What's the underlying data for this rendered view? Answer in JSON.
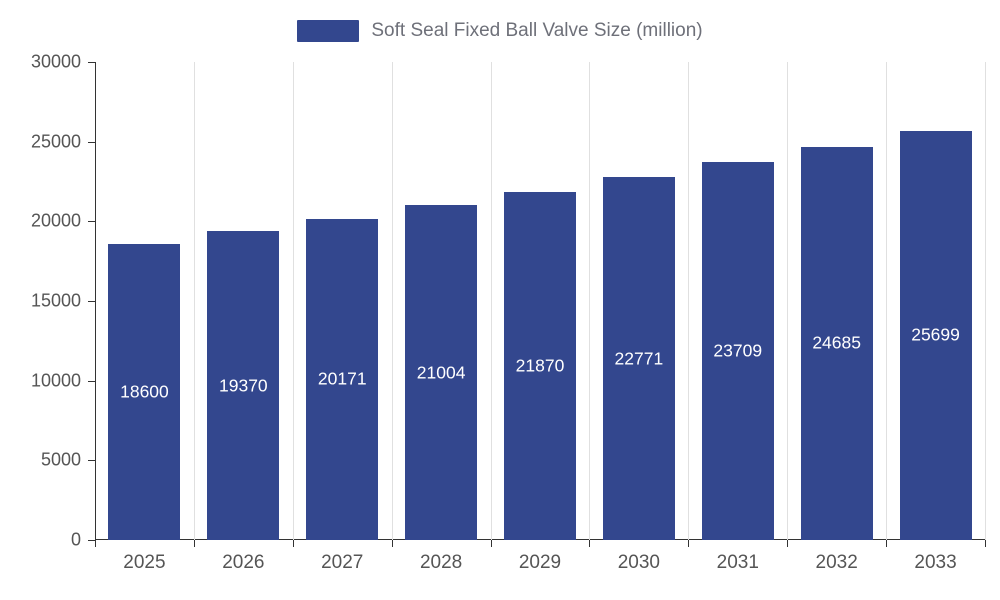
{
  "chart_data": {
    "type": "bar",
    "title": "Soft Seal Fixed Ball Valve Size (million)",
    "categories": [
      "2025",
      "2026",
      "2027",
      "2028",
      "2029",
      "2030",
      "2031",
      "2032",
      "2033"
    ],
    "values": [
      18600,
      19370,
      20171,
      21004,
      21870,
      22771,
      23709,
      24685,
      25699
    ],
    "value_labels": [
      "18600",
      "19370",
      "20171",
      "21004",
      "21870",
      "22771",
      "23709",
      "24685",
      "25699"
    ],
    "xlabel": "",
    "ylabel": "",
    "ylim": [
      0,
      30000
    ],
    "yticks": [
      0,
      5000,
      10000,
      15000,
      20000,
      25000,
      30000
    ],
    "ytick_labels": [
      "0",
      "5000",
      "10000",
      "15000",
      "20000",
      "25000",
      "30000"
    ],
    "grid": "vertical-between-categories",
    "legend_position": "top-center",
    "colors": {
      "bar": "#33478e",
      "value_label": "#ffffff",
      "axis_text": "#555555",
      "title_text": "#6e7079",
      "gridline": "#e0e0e0",
      "axis_line": "#333333",
      "background": "#ffffff"
    }
  }
}
